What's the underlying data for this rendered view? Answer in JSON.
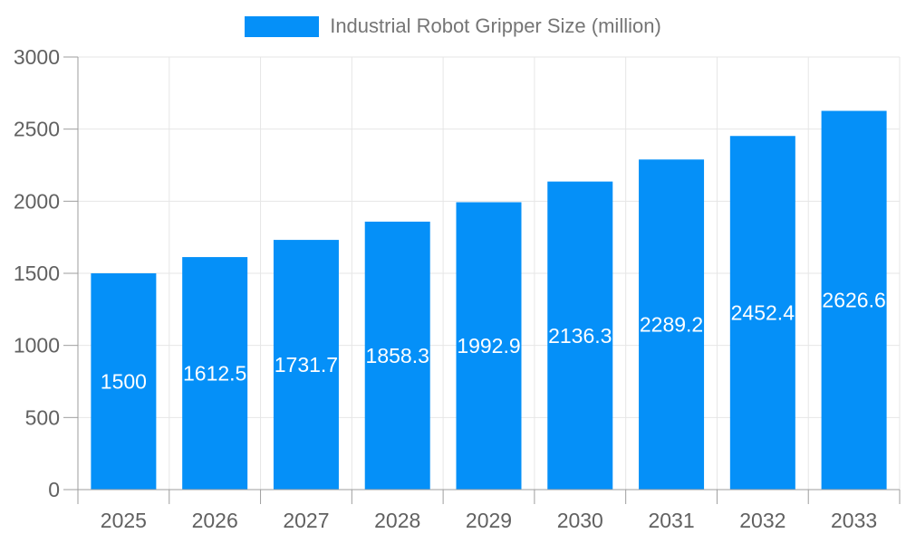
{
  "chart_data": {
    "type": "bar",
    "title": "Industrial Robot Gripper Size (million)",
    "legend": [
      "Industrial Robot Gripper Size (million)"
    ],
    "legend_position": "top",
    "categories": [
      "2025",
      "2026",
      "2027",
      "2028",
      "2029",
      "2030",
      "2031",
      "2032",
      "2033"
    ],
    "series": [
      {
        "name": "Industrial Robot Gripper Size (million)",
        "values": [
          1500,
          1612.5,
          1731.7,
          1858.3,
          1992.9,
          2136.3,
          2289.2,
          2452.4,
          2626.6
        ]
      }
    ],
    "value_labels": [
      "1500",
      "1612.5",
      "1731.7",
      "1858.3",
      "1992.9",
      "2136.3",
      "2289.2",
      "2452.4",
      "2626.6"
    ],
    "xlabel": "",
    "ylabel": "",
    "ylim": [
      0,
      3000
    ],
    "ytick_step": 500,
    "ytick_labels": [
      "0",
      "500",
      "1000",
      "1500",
      "2000",
      "2500",
      "3000"
    ],
    "grid": true,
    "colors": {
      "bar": "#0590f8",
      "grid_line": "#e6e6e6",
      "axis_line": "#9e9e9e",
      "tick_mark": "#9e9e9e",
      "tick_label": "#616161",
      "value_label": "#ffffff",
      "legend_text": "#757575",
      "background": "#ffffff"
    }
  }
}
